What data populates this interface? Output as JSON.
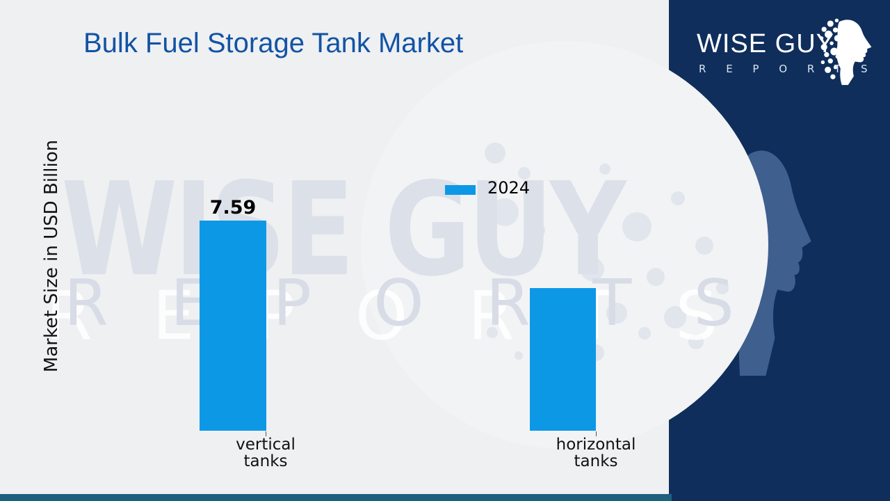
{
  "title": {
    "text": "Bulk Fuel Storage Tank Market",
    "color": "#1253a5"
  },
  "axis": {
    "y_label": "Market Size in USD Billion"
  },
  "legend": {
    "label": "2024"
  },
  "watermark": {
    "line1": "WISE GUY",
    "line2": "R E P O R T S",
    "line2_offset": "R E P O R T S"
  },
  "logo": {
    "line1": "WISE GUY",
    "line2": "R E P O R T S"
  },
  "colors": {
    "bar": "#0d98e6",
    "navy_panel": "#0f2e5c",
    "title_blue": "#1253a5",
    "bottom_bar_teal": "#1d6080",
    "face_silhouette": "#3f5f8f",
    "background": "#eff0f2"
  },
  "chart_data": {
    "type": "bar",
    "categories": [
      "vertical tanks",
      "horizontal tanks"
    ],
    "series": [
      {
        "name": "2024",
        "values": [
          7.59,
          5.15
        ]
      }
    ],
    "data_labels": [
      "7.59",
      ""
    ],
    "title": "Bulk Fuel Storage Tank Market",
    "xlabel": "",
    "ylabel": "Market Size in USD Billion",
    "ylim": [
      0,
      8
    ],
    "grid": false,
    "legend_position": "upper-right",
    "bar_color": "#0d98e6",
    "value_labels_shown_for": [
      "vertical tanks"
    ]
  }
}
